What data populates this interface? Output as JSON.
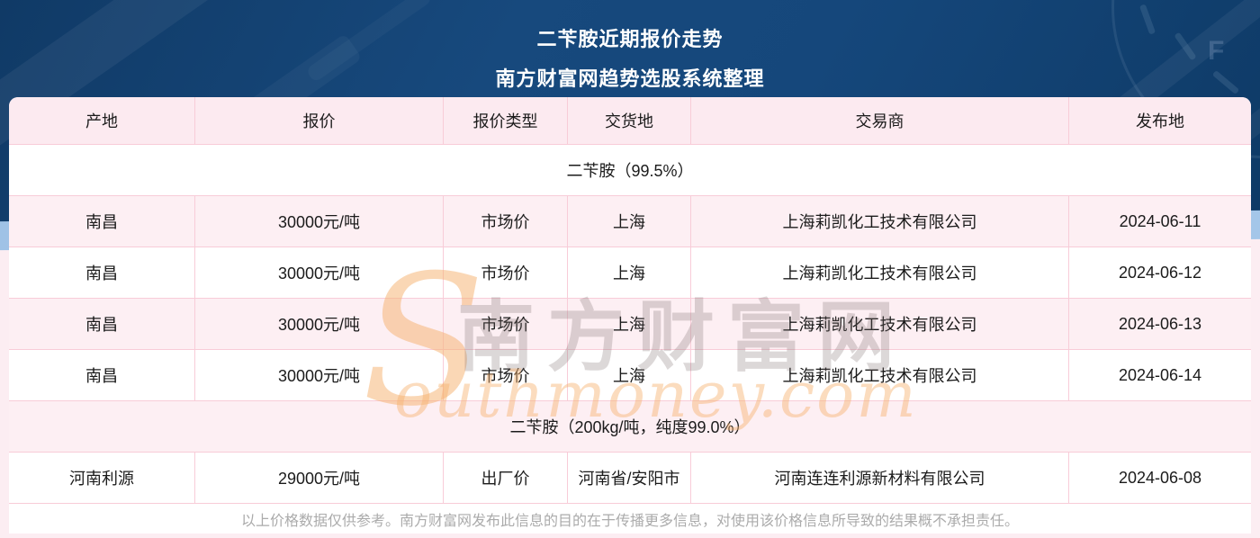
{
  "header": {
    "title": "二苄胺近期报价走势",
    "subtitle": "南方财富网趋势选股系统整理"
  },
  "background": {
    "gauge_letter": "F"
  },
  "table": {
    "columns": [
      "产地",
      "报价",
      "报价类型",
      "交货地",
      "交易商",
      "发布地"
    ],
    "sections": [
      {
        "label": "二苄胺（99.5%）",
        "rows": [
          [
            "南昌",
            "30000元/吨",
            "市场价",
            "上海",
            "上海莉凯化工技术有限公司",
            "2024-06-11"
          ],
          [
            "南昌",
            "30000元/吨",
            "市场价",
            "上海",
            "上海莉凯化工技术有限公司",
            "2024-06-12"
          ],
          [
            "南昌",
            "30000元/吨",
            "市场价",
            "上海",
            "上海莉凯化工技术有限公司",
            "2024-06-13"
          ],
          [
            "南昌",
            "30000元/吨",
            "市场价",
            "上海",
            "上海莉凯化工技术有限公司",
            "2024-06-14"
          ]
        ]
      },
      {
        "label": "二苄胺（200kg/吨，纯度99.0%）",
        "rows": [
          [
            "河南利源",
            "29000元/吨",
            "出厂价",
            "河南省/安阳市",
            "河南连连利源新材料有限公司",
            "2024-06-08"
          ]
        ]
      }
    ],
    "footer": "以上价格数据仅供参考。南方财富网发布此信息的目的在于传播更多信息，对使用该价格信息所导致的结果概不承担责任。"
  },
  "watermark": {
    "s": "S",
    "cn": "南方财富网",
    "en": "outhmoney.com"
  },
  "colors": {
    "header_blue": "#15477b",
    "light_blue_strip": "#a4c6e9",
    "page_pink": "#fcedf2",
    "row_pink": "#fdeff3",
    "header_row_pink": "#fceaf0",
    "table_border_pink": "#f8ccd8",
    "title_text": "#ffffff",
    "cell_text": "#1b1b1b",
    "footer_text": "#ababab",
    "watermark_orange": "#f6b06c",
    "watermark_gray": "#766a6a"
  }
}
